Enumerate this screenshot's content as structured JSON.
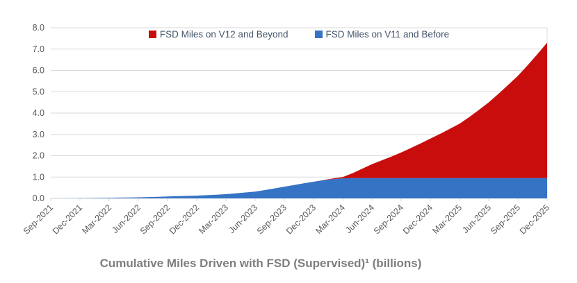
{
  "chart_data": {
    "type": "area",
    "stacked": true,
    "title": "Cumulative Miles Driven with FSD (Supervised)¹ (billions)",
    "xlabel": "",
    "ylabel": "",
    "ylim": [
      0,
      8
    ],
    "ytick_labels": [
      "0.0",
      "1.0",
      "2.0",
      "3.0",
      "4.0",
      "5.0",
      "6.0",
      "7.0",
      "8.0"
    ],
    "grid": "horizontal",
    "legend_position": "top-center",
    "x_tick_labels": [
      "Sep-2021",
      "Dec-2021",
      "Mar-2022",
      "Jun-2022",
      "Sep-2022",
      "Dec-2022",
      "Mar-2023",
      "Jun-2023",
      "Sep-2023",
      "Dec-2023",
      "Mar-2024",
      "Jun-2024",
      "Sep-2024",
      "Dec-2024",
      "Mar-2025",
      "Jun-2025",
      "Sep-2025",
      "Dec-2025"
    ],
    "x_resolution": "monthly",
    "months_per_tick": 3,
    "series": [
      {
        "name": "FSD Miles on V12 and Beyond",
        "color": "#C90D0D",
        "stack_level": 2,
        "values": [
          0,
          0,
          0,
          0,
          0,
          0,
          0,
          0,
          0,
          0,
          0,
          0,
          0,
          0,
          0,
          0,
          0,
          0,
          0,
          0,
          0,
          0,
          0,
          0,
          0,
          0,
          0,
          0,
          0.01,
          0.03,
          0.06,
          0.23,
          0.44,
          0.65,
          0.83,
          1.01,
          1.2,
          1.41,
          1.625,
          1.85,
          2.075,
          2.31,
          2.55,
          2.86,
          3.2,
          3.55,
          3.95,
          4.37,
          4.8,
          5.29,
          5.81,
          6.35
        ]
      },
      {
        "name": "FSD Miles on V11 and Before",
        "color": "#3574C5",
        "stack_level": 1,
        "values": [
          0.002,
          0.004,
          0.008,
          0.012,
          0.017,
          0.023,
          0.03,
          0.036,
          0.043,
          0.05,
          0.062,
          0.075,
          0.09,
          0.103,
          0.116,
          0.13,
          0.15,
          0.173,
          0.2,
          0.235,
          0.275,
          0.32,
          0.39,
          0.468,
          0.55,
          0.628,
          0.705,
          0.78,
          0.85,
          0.905,
          0.94,
          0.948,
          0.95,
          0.95,
          0.95,
          0.95,
          0.95,
          0.95,
          0.95,
          0.95,
          0.95,
          0.95,
          0.95,
          0.95,
          0.95,
          0.95,
          0.95,
          0.95,
          0.95,
          0.95,
          0.95,
          0.95
        ]
      }
    ],
    "quarterly_totals_billions": [
      0.0,
      0.01,
      0.03,
      0.05,
      0.09,
      0.13,
      0.2,
      0.32,
      0.55,
      0.78,
      1.0,
      1.6,
      2.15,
      2.8,
      3.5,
      4.5,
      5.75,
      7.3
    ],
    "colors": {
      "grid": "#DADADA",
      "axis_text": "#595959",
      "legend_text": "#44546A",
      "title_text": "#7E7E7E"
    }
  }
}
